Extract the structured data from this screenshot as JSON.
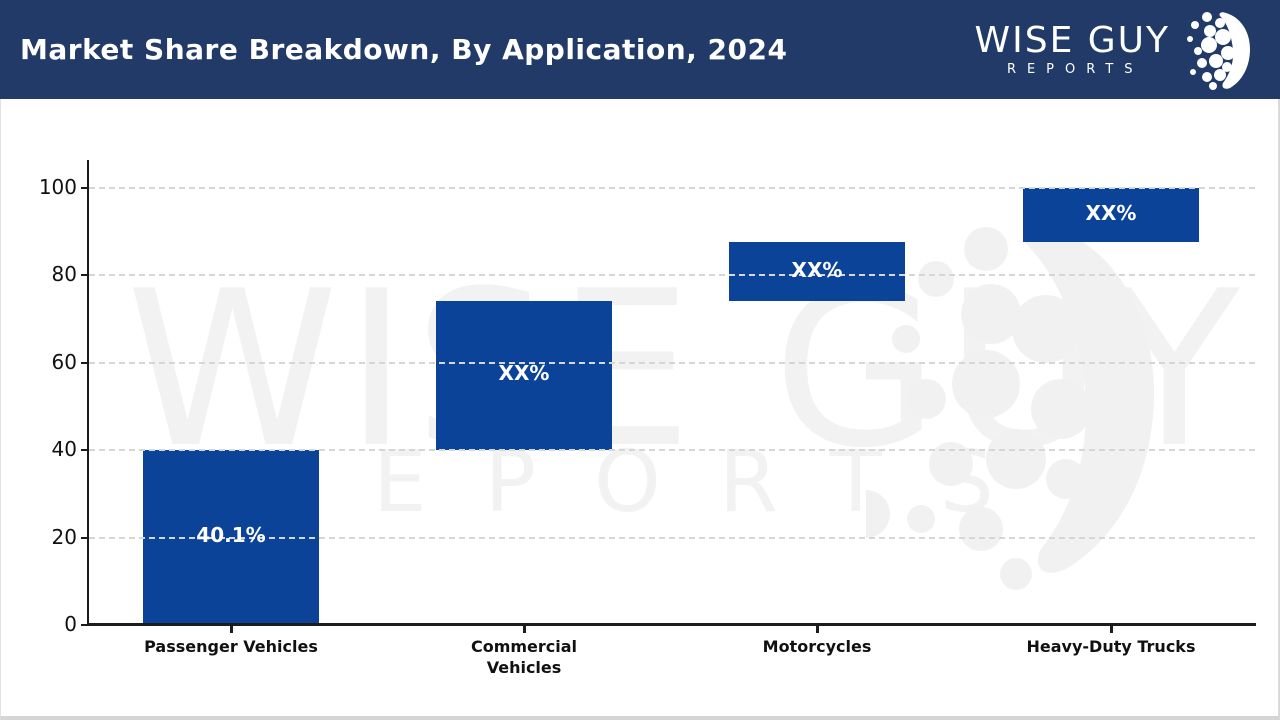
{
  "header": {
    "title": "Market Share Breakdown, By Application, 2024",
    "logo": {
      "line1": "WISE GUY",
      "line2": "REPORTS"
    }
  },
  "watermark": {
    "line1": "WISE GUY",
    "line2": "REPORTS"
  },
  "colors": {
    "header_bg": "#223a67",
    "bar_fill": "#0b4399",
    "grid": "#d6d6d6",
    "axis": "#1c1c1c",
    "bar_label": "#ffffff",
    "watermark": "#f2f2f2"
  },
  "chart_data": {
    "type": "bar",
    "subtype": "waterfall-breakdown",
    "title": "Market Share Breakdown, By Application, 2024",
    "categories": [
      "Passenger Vehicles",
      "Commercial\nVehicles",
      "Motorcycles",
      "Heavy-Duty Trucks"
    ],
    "segments": [
      {
        "category": "Passenger Vehicles",
        "start": 0,
        "end": 40.1,
        "label": "40.1%"
      },
      {
        "category": "Commercial Vehicles",
        "start": 40.1,
        "end": 74,
        "label": "XX%"
      },
      {
        "category": "Motorcycles",
        "start": 74,
        "end": 87.5,
        "label": "XX%"
      },
      {
        "category": "Heavy-Duty Trucks",
        "start": 87.5,
        "end": 100,
        "label": "XX%"
      }
    ],
    "yticks": [
      0,
      20,
      40,
      60,
      80,
      100
    ],
    "ylim": [
      0,
      100
    ],
    "xlabel": "",
    "ylabel": "",
    "grid": "horizontal-dashed",
    "legend": "none"
  }
}
